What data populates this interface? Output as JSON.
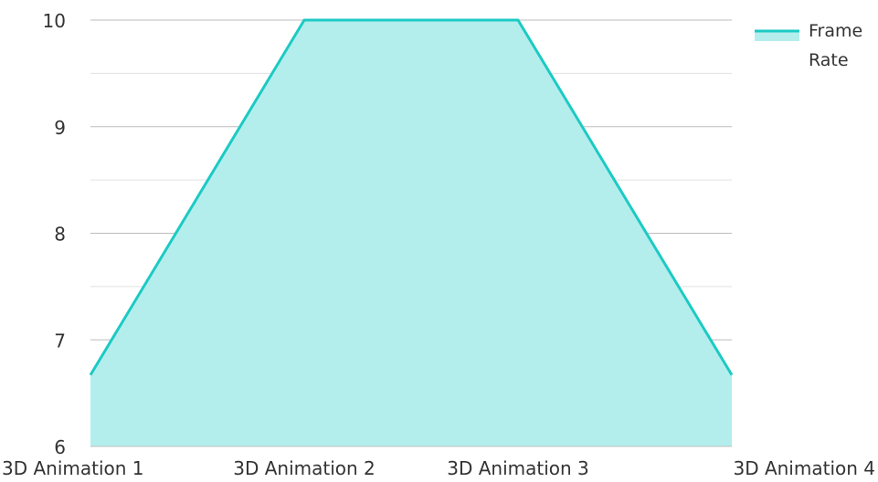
{
  "chart_data": {
    "type": "area",
    "title": "",
    "xlabel": "",
    "ylabel": "",
    "categories": [
      "3D Animation 1",
      "3D Animation 2",
      "3D Animation 3",
      "3D Animation 4"
    ],
    "series": [
      {
        "name": "Frame Rate",
        "values": [
          6.67,
          10,
          10,
          6.67
        ]
      }
    ],
    "ylim": [
      6,
      10
    ],
    "yticks": [
      "6",
      "7",
      "8",
      "9",
      "10"
    ],
    "grid": true,
    "legend": {
      "position": "top-right",
      "label_lines": [
        "Frame",
        "Rate"
      ]
    },
    "colors": {
      "line": "#1ccac4",
      "fill": "#b3eeed",
      "grid": "#c8c8c8",
      "text": "#333333"
    }
  }
}
